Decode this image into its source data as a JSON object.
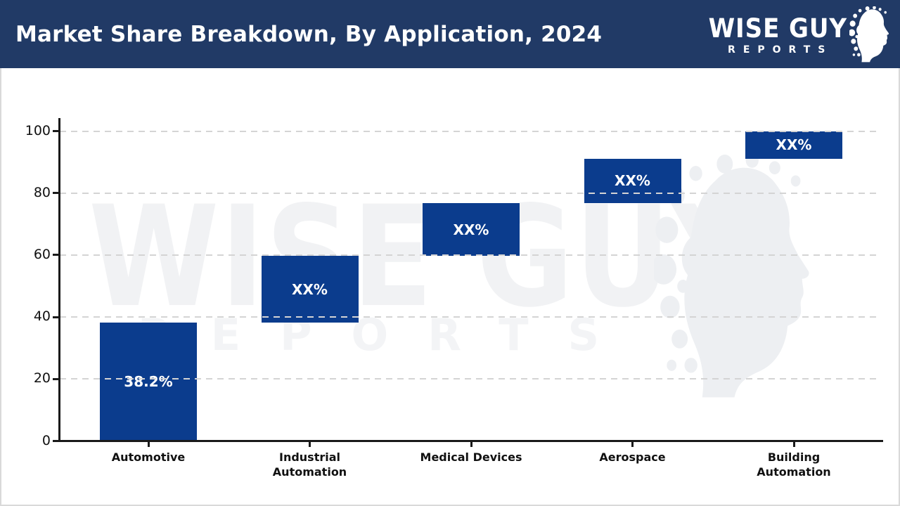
{
  "header": {
    "title": "Market Share Breakdown, By Application, 2024",
    "logo": {
      "primary": "WISE GUY",
      "secondary": "REPORTS"
    }
  },
  "watermark": {
    "primary": "WISE GUY",
    "secondary": "REPORTS"
  },
  "chart_data": {
    "type": "bar",
    "subtype": "waterfall-floating-segments",
    "title": "Market Share Breakdown, By Application, 2024",
    "xlabel": "",
    "ylabel": "",
    "yticks": [
      0,
      20,
      40,
      60,
      80,
      100
    ],
    "ylim": [
      0,
      104
    ],
    "grid": "horizontal-dashed",
    "legend": false,
    "bar_color": "#0b3c8d",
    "bars": [
      {
        "category": "Automotive",
        "category_lines": [
          "Automotive"
        ],
        "start": 0,
        "end": 38.2,
        "label": "38.2%"
      },
      {
        "category": "Industrial Automation",
        "category_lines": [
          "Industrial",
          "Automation"
        ],
        "start": 38.2,
        "end": 59.7,
        "label": "XX%"
      },
      {
        "category": "Medical Devices",
        "category_lines": [
          "Medical Devices"
        ],
        "start": 59.7,
        "end": 76.8,
        "label": "XX%"
      },
      {
        "category": "Aerospace",
        "category_lines": [
          "Aerospace"
        ],
        "start": 76.8,
        "end": 91.0,
        "label": "XX%"
      },
      {
        "category": "Building Automation",
        "category_lines": [
          "Building",
          "Automation"
        ],
        "start": 91.0,
        "end": 100.0,
        "label": "XX%"
      }
    ]
  },
  "colors": {
    "header_bg": "#213a66",
    "bar": "#0b3c8d",
    "grid": "#d4d4d4",
    "axis": "#1a1a1a",
    "watermark": "#f1f2f4",
    "frame_border": "#d9d9d9"
  }
}
